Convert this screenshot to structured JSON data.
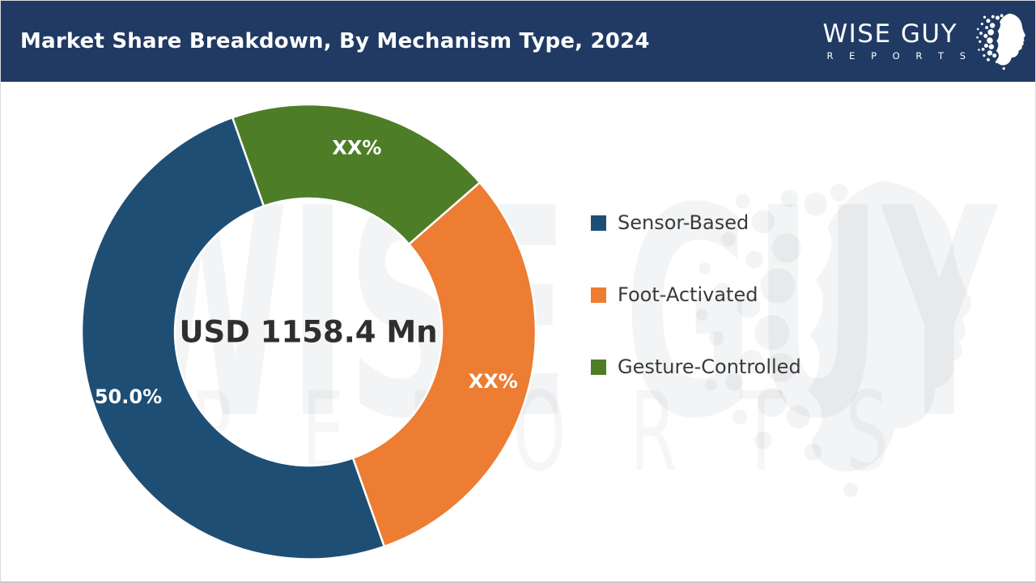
{
  "header": {
    "title": "Market Share Breakdown, By Mechanism Type, 2024",
    "brand": {
      "name_line": "WISE GUY",
      "sub_line": "R E P O R T S"
    },
    "colors": {
      "bg": "#203A64",
      "text": "#FFFFFF"
    }
  },
  "chart_data": {
    "type": "pie",
    "variant": "donut",
    "title": "Market Share Breakdown, By Mechanism Type, 2024",
    "center_label": "USD 1158.4 Mn",
    "categories": [
      "Sensor-Based",
      "Foot-Activated",
      "Gesture-Controlled"
    ],
    "values": [
      50.0,
      31.0,
      19.0
    ],
    "slice_labels": [
      "50.0%",
      "XX%",
      "XX%"
    ],
    "colors": [
      "#1F4E74",
      "#EC7D33",
      "#4E7D28"
    ],
    "start_angle_deg": 109.5,
    "direction": "counterclockwise",
    "legend_position": "right",
    "slice_border_color": "#FFFFFF"
  },
  "legend": {
    "items": [
      {
        "label": "Sensor-Based",
        "color": "#1F4E74"
      },
      {
        "label": "Foot-Activated",
        "color": "#EC7D33"
      },
      {
        "label": "Gesture-Controlled",
        "color": "#4E7D28"
      }
    ]
  },
  "watermark": {
    "line1": "WISE GUY",
    "line2": "R E P O R T S"
  }
}
